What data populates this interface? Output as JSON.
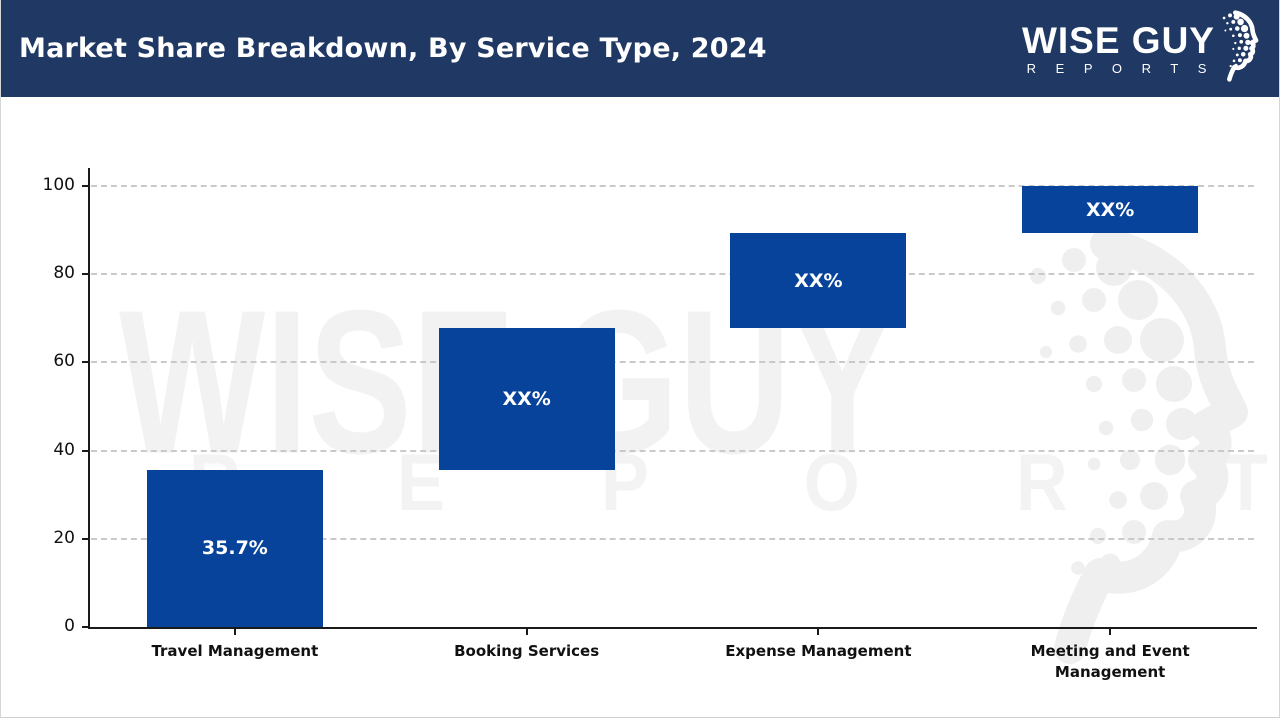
{
  "header": {
    "title": "Market Share Breakdown, By Service Type, 2024",
    "bg_color": "#203864",
    "brand": {
      "name": "WISE GUY",
      "sub": "R E P O R T S"
    }
  },
  "watermark": {
    "line1": "WISE GUY",
    "line2": "R E P O R T S"
  },
  "chart_data": {
    "type": "bar",
    "subtype": "waterfall-floating-bars",
    "title": "Market Share Breakdown, By Service Type, 2024",
    "categories": [
      "Travel Management",
      "Booking Services",
      "Expense Management",
      "Meeting and Event Management"
    ],
    "segments": [
      {
        "category": "Travel Management",
        "start": 0,
        "end": 35.7,
        "label": "35.7%"
      },
      {
        "category": "Booking Services",
        "start": 35.7,
        "end": 67.8,
        "label": "XX%"
      },
      {
        "category": "Expense Management",
        "start": 67.8,
        "end": 89.3,
        "label": "XX%"
      },
      {
        "category": "Meeting and Event Management",
        "start": 89.3,
        "end": 100,
        "label": "XX%"
      }
    ],
    "yticks": [
      0,
      20,
      40,
      60,
      80,
      100
    ],
    "ylim": [
      0,
      100
    ],
    "grid": "horizontal-dashed",
    "legend": "none",
    "bar_color": "#07439b",
    "bar_label_color": "#ffffff",
    "axis_color": "#1a1a1a",
    "gridline_color": "#c9c9c9"
  }
}
